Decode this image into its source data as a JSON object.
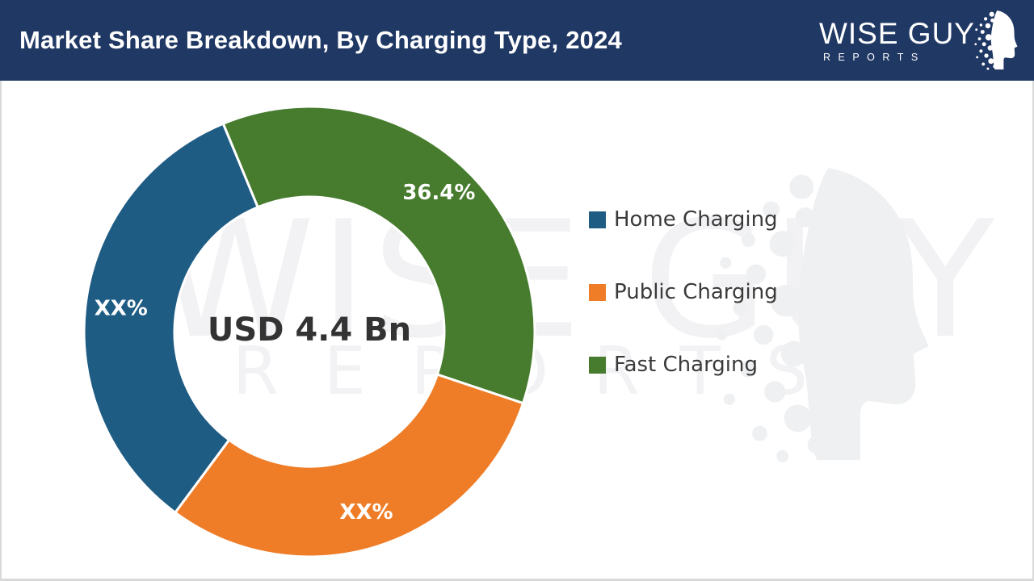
{
  "header": {
    "title": "Market Share Breakdown, By Charging Type, 2024",
    "bg_color": "#203864",
    "logo": {
      "line1": "WISE GUY",
      "line2": "REPORTS"
    }
  },
  "chart_data": {
    "type": "pie",
    "subtype": "donut",
    "title": "Market Share Breakdown, By Charging Type, 2024",
    "center_label": "USD 4.4 Bn",
    "start_angle_deg": -22.5,
    "direction": "clockwise",
    "segments": [
      {
        "name": "Fast Charging",
        "value_pct": 36.4,
        "label": "36.4%",
        "color": "#477c2e"
      },
      {
        "name": "Public Charging",
        "value_pct": 30.0,
        "label": "XX%",
        "color": "#ef7d28"
      },
      {
        "name": "Home Charging",
        "value_pct": 33.6,
        "label": "XX%",
        "color": "#1f5c84"
      }
    ],
    "legend_position": "right",
    "segment_gap_color": "#ffffff"
  },
  "legend": {
    "items": [
      {
        "label": "Home Charging",
        "color": "#1f5c84"
      },
      {
        "label": "Public Charging",
        "color": "#ef7d28"
      },
      {
        "label": "Fast Charging",
        "color": "#477c2e"
      }
    ]
  },
  "watermark": {
    "line1": "WISE GUY",
    "line2": "REPORTS"
  },
  "colors": {
    "header_bg": "#203864",
    "border": "#d9d9d9",
    "center_text": "#333333",
    "legend_text": "#3a3a3a",
    "watermark": "#f2f2f4"
  }
}
